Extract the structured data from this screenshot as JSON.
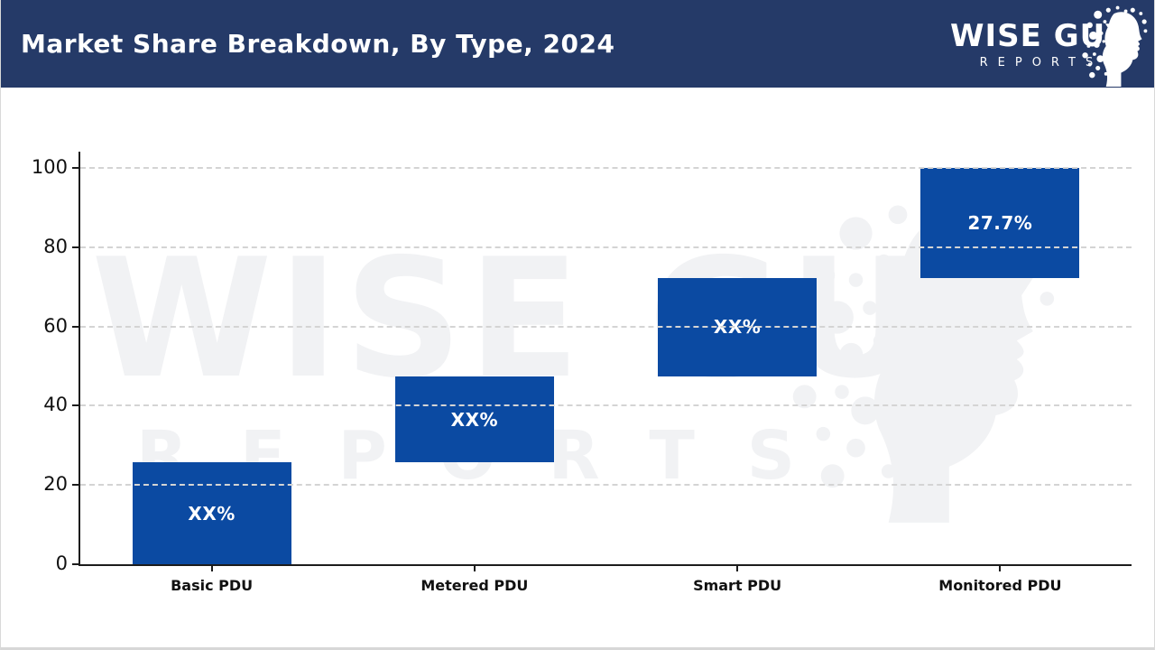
{
  "header": {
    "title": "Market Share Breakdown, By Type, 2024",
    "logo": {
      "name": "WISE GUY",
      "subtitle": "REPORTS"
    }
  },
  "watermark": {
    "wordmark": "WISE GUY",
    "subtitle": "REPORTS"
  },
  "colors": {
    "header_bg": "#253a68",
    "bar": "#0b4aa2",
    "bar_label_text": "#ffffff",
    "title_text": "#ffffff",
    "grid": "#d4d4d4",
    "axis": "#1c1c1c",
    "watermark": "#f1f2f4"
  },
  "chart_data": {
    "type": "bar",
    "subtype": "waterfall",
    "title": "Market Share Breakdown, By Type, 2024",
    "categories": [
      "Basic PDU",
      "Metered PDU",
      "Smart PDU",
      "Monitored PDU"
    ],
    "segments": [
      {
        "category": "Basic PDU",
        "start": 0,
        "end": 25.7,
        "label": "XX%",
        "value_masked": true
      },
      {
        "category": "Metered PDU",
        "start": 25.7,
        "end": 47.3,
        "label": "XX%",
        "value_masked": true
      },
      {
        "category": "Smart PDU",
        "start": 47.3,
        "end": 72.3,
        "label": "XX%",
        "value_masked": true
      },
      {
        "category": "Monitored PDU",
        "start": 72.3,
        "end": 100,
        "label": "27.7%",
        "value": 27.7
      }
    ],
    "xlabel": "",
    "ylabel": "",
    "ylim": [
      0,
      100
    ],
    "yticks": [
      0,
      20,
      40,
      60,
      80,
      100
    ],
    "grid": "horizontal-dashed",
    "legend": "none",
    "bar_color": "#0b4aa2"
  }
}
